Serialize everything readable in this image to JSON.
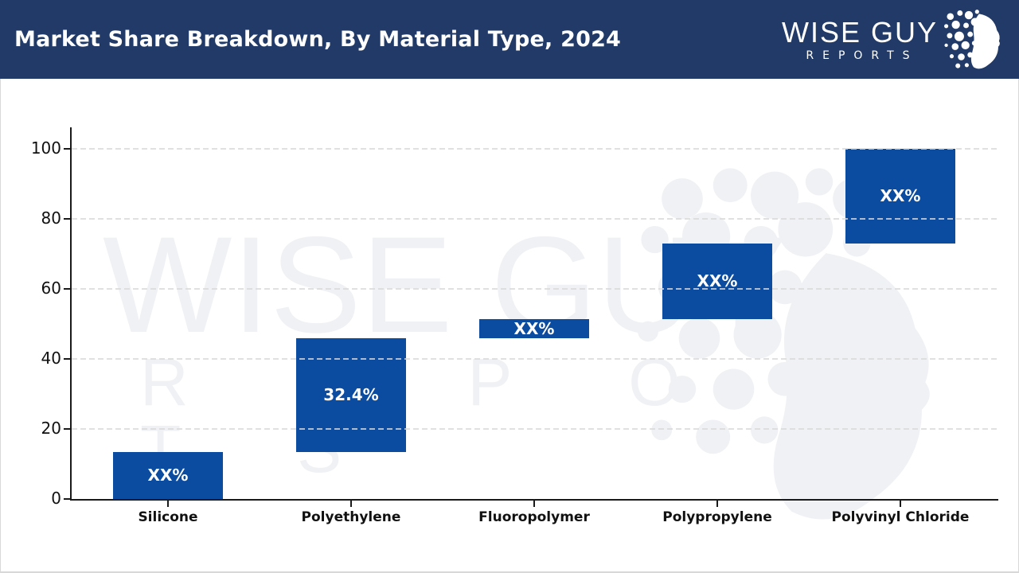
{
  "header": {
    "title": "Market Share Breakdown, By Material Type, 2024",
    "logo_line1": "WISE GUY",
    "logo_line2": "REPORTS",
    "bg_color": "#213a67"
  },
  "watermark": {
    "line1": "WISE GUY",
    "line2": "R E P O R T S"
  },
  "chart_data": {
    "type": "bar",
    "subtype": "floating-waterfall",
    "title": "Market Share Breakdown, By Material Type, 2024",
    "categories": [
      "Silicone",
      "Polyethylene",
      "Fluoropolymer",
      "Polypropylene",
      "Polyvinyl Chloride"
    ],
    "segments": [
      {
        "category": "Silicone",
        "start": 0,
        "end": 13.5,
        "label": "XX%"
      },
      {
        "category": "Polyethylene",
        "start": 13.5,
        "end": 45.9,
        "label": "32.4%"
      },
      {
        "category": "Fluoropolymer",
        "start": 45.9,
        "end": 51.4,
        "label": "XX%"
      },
      {
        "category": "Polypropylene",
        "start": 51.4,
        "end": 73.0,
        "label": "XX%"
      },
      {
        "category": "Polyvinyl Chloride",
        "start": 73.0,
        "end": 100.0,
        "label": "XX%"
      }
    ],
    "y_ticks": [
      0,
      20,
      40,
      60,
      80,
      100
    ],
    "ylim": [
      0,
      105
    ],
    "xlabel": "",
    "ylabel": "",
    "bar_color": "#0b4ba0",
    "grid": "horizontal-dashed",
    "legend": "none"
  }
}
